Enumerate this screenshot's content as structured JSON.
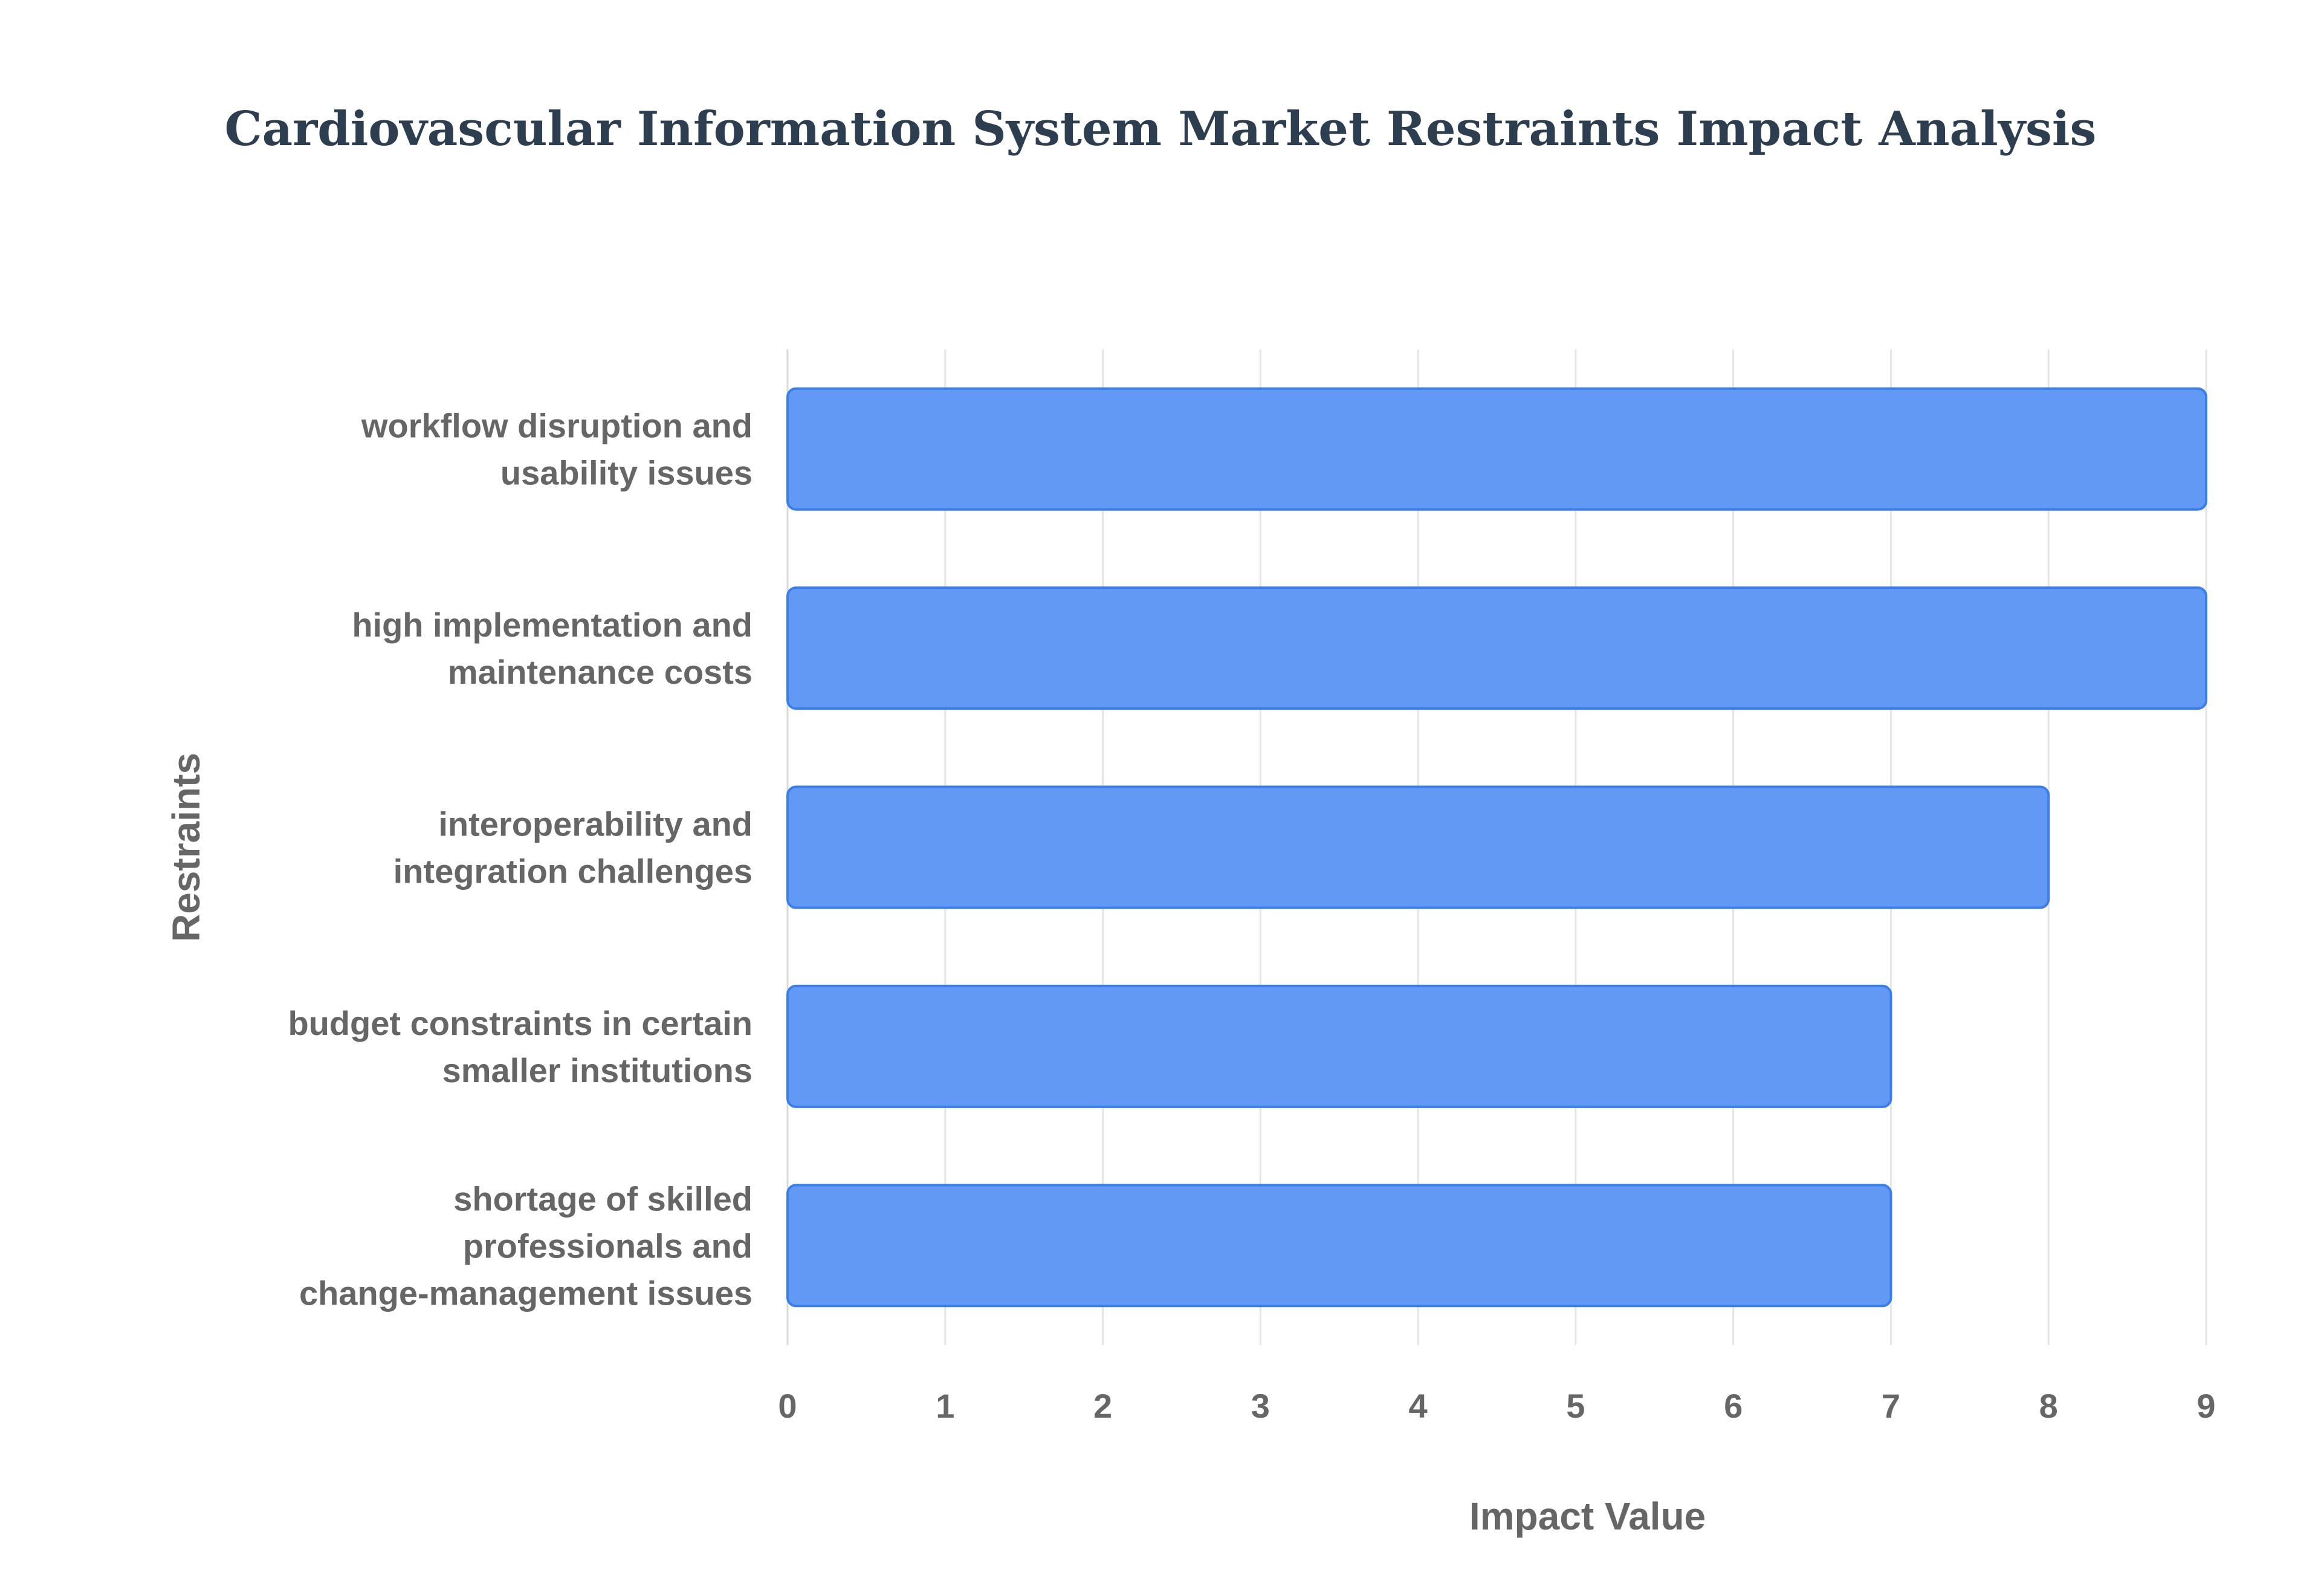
{
  "chart_data": {
    "type": "bar",
    "orientation": "horizontal",
    "title": "Cardiovascular Information System Market Restraints Impact Analysis",
    "xlabel": "Impact Value",
    "ylabel": "Restraints",
    "xlim": [
      0,
      9
    ],
    "xticks": [
      "0",
      "1",
      "2",
      "3",
      "4",
      "5",
      "6",
      "7",
      "8",
      "9"
    ],
    "grid": true,
    "bar_color": "#6199f5",
    "bar_edge_color": "#3b7eea",
    "categories": [
      [
        "workflow disruption and",
        "usability issues"
      ],
      [
        "high implementation and",
        "maintenance costs"
      ],
      [
        "interoperability and",
        "integration challenges"
      ],
      [
        "budget constraints in certain",
        "smaller institutions"
      ],
      [
        "shortage of skilled",
        "professionals and",
        "change-management issues"
      ]
    ],
    "values": [
      9,
      9,
      8,
      7,
      7
    ]
  }
}
